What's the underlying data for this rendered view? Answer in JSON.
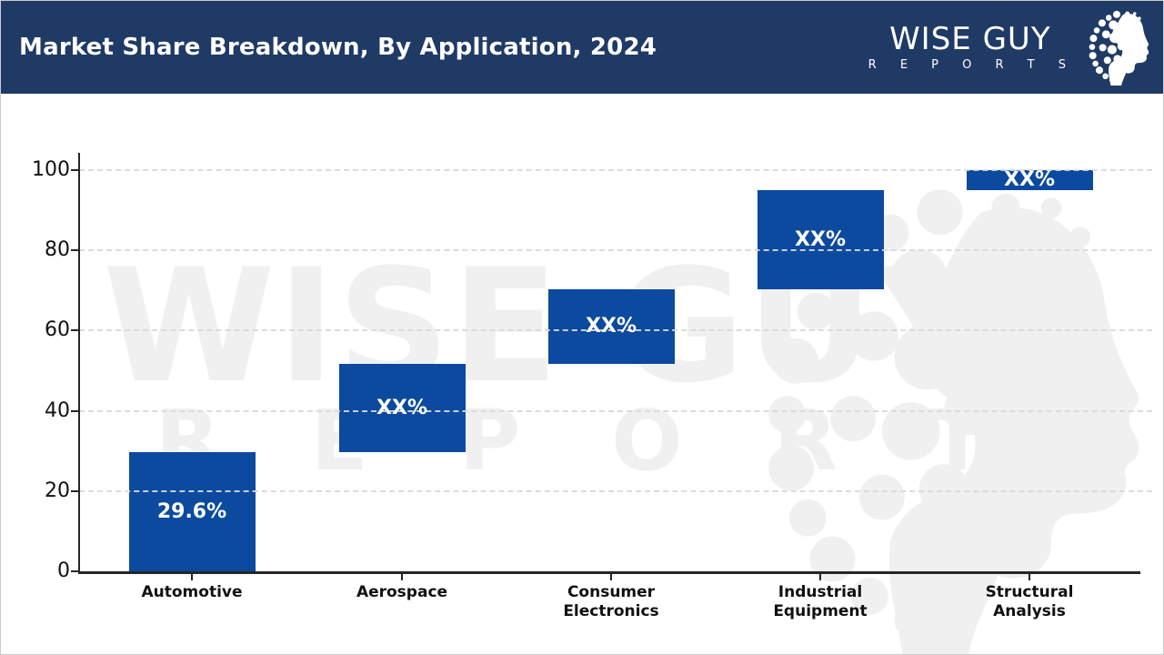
{
  "header": {
    "title": "Market Share Breakdown, By Application, 2024",
    "bg_color": "#203A66",
    "logo": {
      "line1": "WISE GUY",
      "line2": "R E P O R T S"
    }
  },
  "watermark": {
    "line1": "WISE GUY",
    "line2": "R E P O R T S",
    "color": "#F0F0F1"
  },
  "chart_data": {
    "type": "bar",
    "subtype": "waterfall",
    "title": "Market Share Breakdown, By Application, 2024",
    "categories": [
      "Automotive",
      "Aerospace",
      "Consumer\nElectronics",
      "Industrial\nEquipment",
      "Structural\nAnalysis"
    ],
    "series": [
      {
        "name": "Market share segment",
        "segments": [
          [
            0,
            29.6
          ],
          [
            29.6,
            51.8
          ],
          [
            51.8,
            70.3
          ],
          [
            70.3,
            95.0
          ],
          [
            95.0,
            100.0
          ]
        ]
      }
    ],
    "bar_labels": [
      "29.6%",
      "XX%",
      "XX%",
      "XX%",
      "XX%"
    ],
    "xlabel": "",
    "ylabel": "",
    "ylim": [
      0,
      105
    ],
    "yticks": [
      0,
      20,
      40,
      60,
      80,
      100
    ],
    "grid": "horizontal-dashed",
    "legend": "none",
    "bar_color": "#0B4A9E",
    "axis_color": "#262626",
    "grid_color": "#D9D9D9",
    "label_color": "#111111",
    "value_label_color": "#FFFFFF"
  }
}
